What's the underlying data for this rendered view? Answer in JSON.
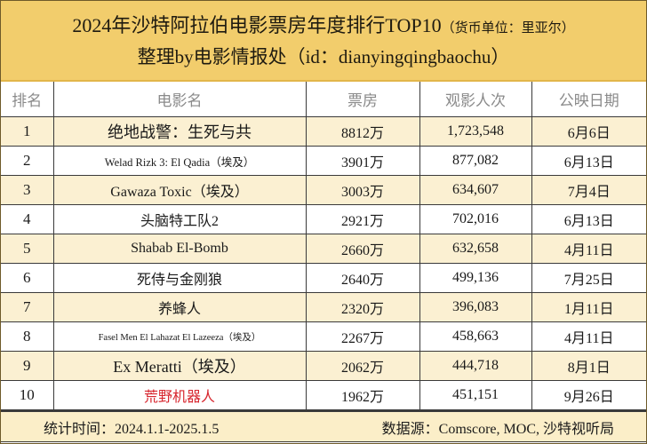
{
  "title": {
    "main": "2024年沙特阿拉伯电影票房年度排行TOP10",
    "unit_note": "（货币单位：里亚尔）",
    "credit": "整理by电影情报处（id：dianyingqingbaochu）"
  },
  "table": {
    "headers": [
      "排名",
      "电影名",
      "票房",
      "观影人次",
      "公映日期"
    ],
    "rows": [
      {
        "rank": "1",
        "name": "绝地战警：生死与共",
        "box_office": "8812万",
        "admissions": "1,723,548",
        "release": "6月6日"
      },
      {
        "rank": "2",
        "name": "Welad Rizk 3: El Qadia（埃及）",
        "box_office": "3901万",
        "admissions": "877,082",
        "release": "6月13日"
      },
      {
        "rank": "3",
        "name": "Gawaza Toxic（埃及）",
        "box_office": "3003万",
        "admissions": "634,607",
        "release": "7月4日"
      },
      {
        "rank": "4",
        "name": "头脑特工队2",
        "box_office": "2921万",
        "admissions": "702,016",
        "release": "6月13日"
      },
      {
        "rank": "5",
        "name": "Shabab El-Bomb",
        "box_office": "2660万",
        "admissions": "632,658",
        "release": "4月11日"
      },
      {
        "rank": "6",
        "name": "死侍与金刚狼",
        "box_office": "2640万",
        "admissions": "499,136",
        "release": "7月25日"
      },
      {
        "rank": "7",
        "name": "养蜂人",
        "box_office": "2320万",
        "admissions": "396,083",
        "release": "1月11日"
      },
      {
        "rank": "8",
        "name": "Fasel Men El Lahazat El Lazeeza（埃及）",
        "box_office": "2267万",
        "admissions": "458,663",
        "release": "4月11日"
      },
      {
        "rank": "9",
        "name": "Ex Meratti（埃及）",
        "box_office": "2062万",
        "admissions": "444,718",
        "release": "8月1日"
      },
      {
        "rank": "10",
        "name": "荒野机器人",
        "box_office": "1962万",
        "admissions": "451,151",
        "release": "9月26日"
      }
    ]
  },
  "footer": {
    "period": "统计时间：2024.1.1-2025.1.5",
    "source": "数据源：Comscore, MOC, 沙特视听局"
  },
  "colors": {
    "title_bg": "#f2cd6c",
    "odd_row_bg": "#fbf0d2",
    "highlight_red": "#d7262e"
  }
}
